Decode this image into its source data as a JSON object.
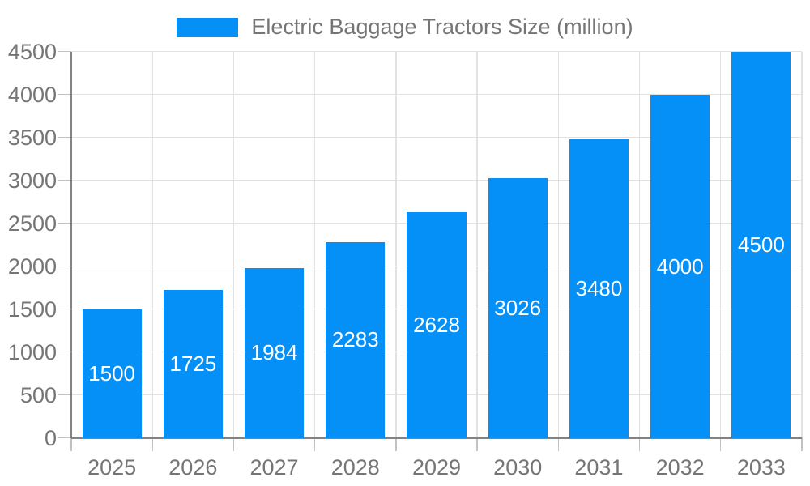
{
  "chart_data": {
    "type": "bar",
    "title": "Electric Baggage Tractors Size (million)",
    "categories": [
      "2025",
      "2026",
      "2027",
      "2028",
      "2029",
      "2030",
      "2031",
      "2032",
      "2033"
    ],
    "values": [
      1500,
      1725,
      1984,
      2283,
      2628,
      3026,
      3480,
      4000,
      4500
    ],
    "xlabel": "",
    "ylabel": "",
    "ylim": [
      0,
      4500
    ],
    "y_ticks": [
      0,
      500,
      1000,
      1500,
      2000,
      2500,
      3000,
      3500,
      4000,
      4500
    ],
    "grid": true,
    "legend_position": "top",
    "bar_value_labels_shown": true
  },
  "colors": {
    "bar": "#0590F8",
    "bar_value_text": "#FFFFFF",
    "axis_text": "#757575",
    "grid_line": "#E2E2E2",
    "tick_line": "#C2C2C2",
    "axis_line": "#828282",
    "background": "#FFFFFF"
  }
}
